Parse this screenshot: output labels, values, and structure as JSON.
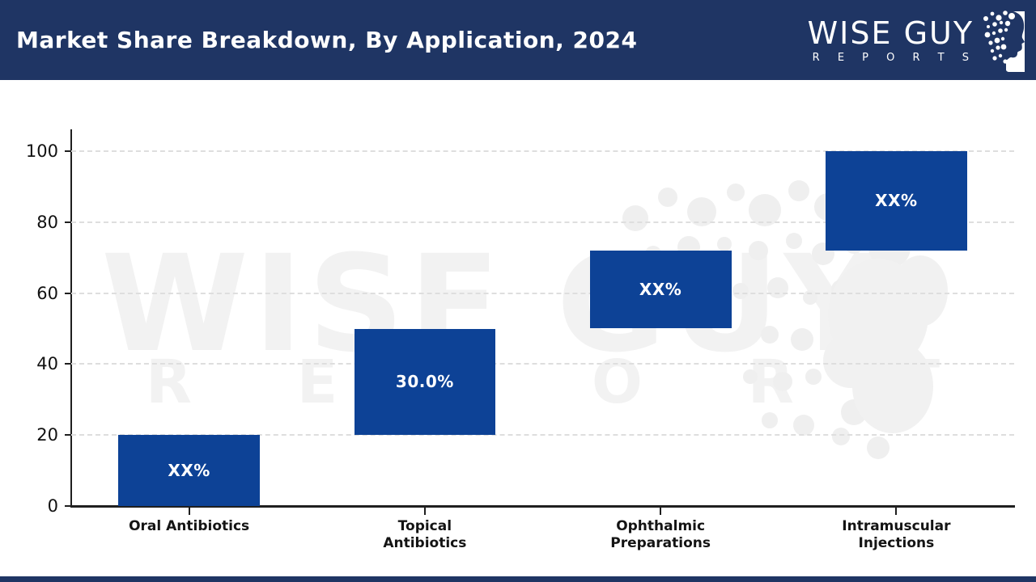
{
  "header": {
    "title": "Market Share Breakdown, By Application, 2024",
    "logo_line1": "WISE GUY",
    "logo_line2": "R E P O R T S"
  },
  "watermark": {
    "line1": "WISE GUY",
    "line2": "R E P O R T S"
  },
  "brand_colors": {
    "navy": "#1f3564",
    "bar_blue": "#0d4296",
    "watermark_gray": "#f2f2f2"
  },
  "chart_data": {
    "type": "bar",
    "subtype": "waterfall",
    "title": "Market Share Breakdown, By Application, 2024",
    "categories": [
      "Oral Antibiotics",
      "Topical Antibiotics",
      "Ophthalmic Preparations",
      "Intramuscular Injections"
    ],
    "category_label_lines": [
      [
        "Oral Antibiotics"
      ],
      [
        "Topical",
        "Antibiotics"
      ],
      [
        "Ophthalmic",
        "Preparations"
      ],
      [
        "Intramuscular",
        "Injections"
      ]
    ],
    "series": [
      {
        "name": "Market Share %",
        "segments": [
          {
            "category": "Oral Antibiotics",
            "start": 0,
            "end": 20,
            "label": "XX%"
          },
          {
            "category": "Topical Antibiotics",
            "start": 20,
            "end": 50,
            "label": "30.0%"
          },
          {
            "category": "Ophthalmic Preparations",
            "start": 50,
            "end": 72,
            "label": "XX%"
          },
          {
            "category": "Intramuscular Injections",
            "start": 72,
            "end": 100,
            "label": "XX%"
          }
        ]
      }
    ],
    "xlabel": "",
    "ylabel": "",
    "ylim": [
      0,
      100
    ],
    "yticks": [
      0,
      20,
      40,
      60,
      80,
      100
    ],
    "grid": {
      "horizontal": true,
      "style": "dashed",
      "color": "#dedede"
    },
    "legend": "none",
    "bar_color": "#0d4296",
    "bar_label_color": "#ffffff"
  }
}
